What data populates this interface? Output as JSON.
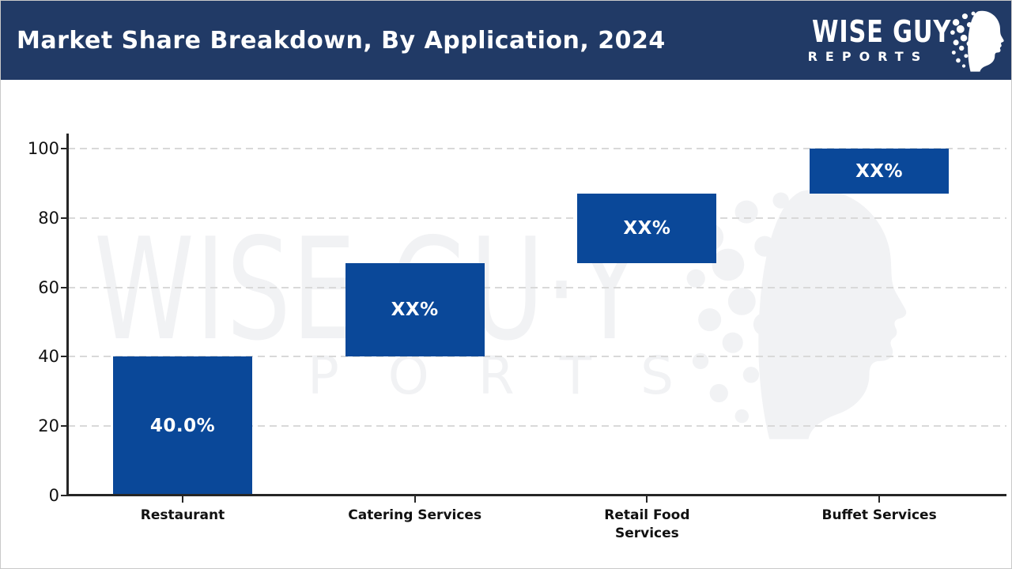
{
  "header": {
    "title": "Market Share Breakdown, By Application, 2024",
    "brand": {
      "name": "WISE GUY",
      "subtitle": "REPORTS"
    }
  },
  "watermark": {
    "line1": "WISE GU·Y",
    "line2": "PORTS"
  },
  "chart_data": {
    "type": "bar",
    "subtype": "waterfall",
    "title": "Market Share Breakdown, By Application, 2024",
    "categories": [
      "Restaurant",
      "Catering Services",
      "Retail Food\nServices",
      "Buffet Services"
    ],
    "series": [
      {
        "name": "Restaurant",
        "start": 0,
        "end": 40,
        "label": "40.0%"
      },
      {
        "name": "Catering Services",
        "start": 40,
        "end": 67,
        "label": "XX%"
      },
      {
        "name": "Retail Food Services",
        "start": 67,
        "end": 87,
        "label": "XX%"
      },
      {
        "name": "Buffet Services",
        "start": 87,
        "end": 100,
        "label": "XX%"
      }
    ],
    "ylim": [
      0,
      100
    ],
    "yticks": [
      0,
      20,
      40,
      60,
      80,
      100
    ],
    "grid": "horizontal-dashed",
    "legend": "none",
    "bar_color": "#0A4899",
    "bar_label_color": "#FFFFFF"
  },
  "colors": {
    "header_bg": "#213A66",
    "bar": "#0A4899",
    "axis": "#262626",
    "gridline": "#D9D9D9",
    "watermark": "#F1F2F4",
    "page_border": "#C9C9C9"
  }
}
